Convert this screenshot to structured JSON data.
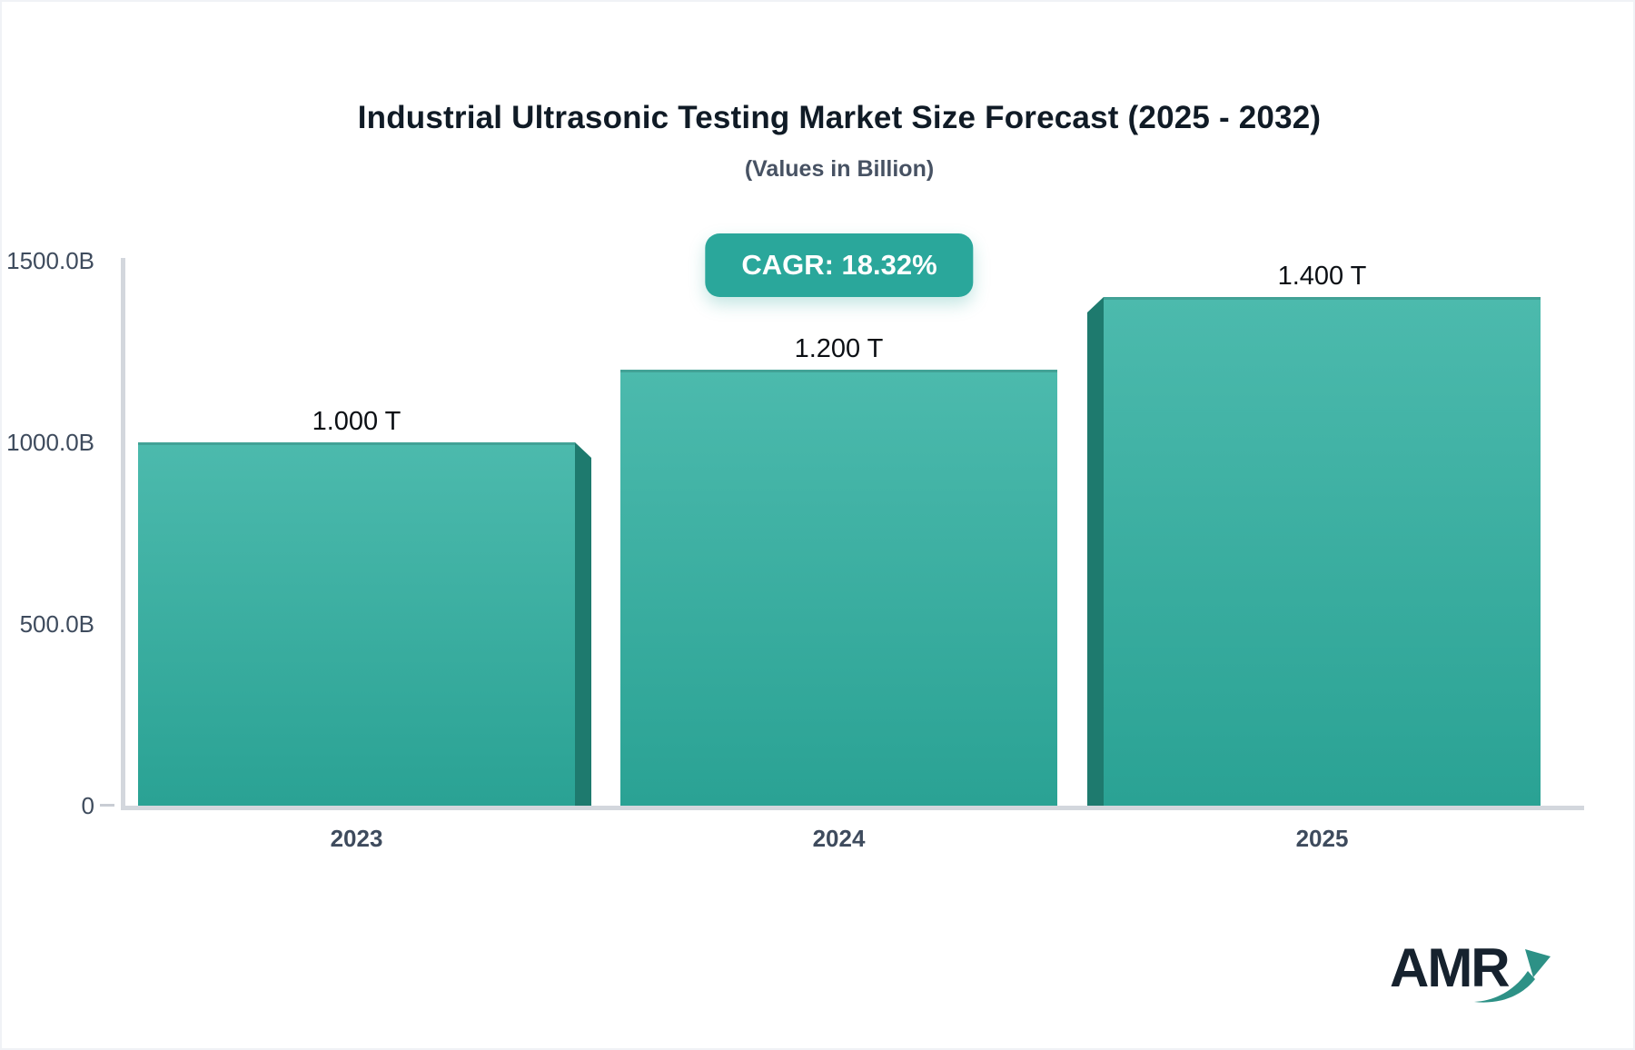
{
  "header": {
    "title": "Industrial Ultrasonic Testing Market Size Forecast (2025 - 2032)",
    "subtitle": "(Values in Billion)",
    "cagr_label": "CAGR: 18.32%"
  },
  "chart_data": {
    "type": "bar",
    "title": "Industrial Ultrasonic Testing Market Size Forecast (2025 - 2032)",
    "subtitle": "(Values in Billion)",
    "unit": "Billion",
    "cagr_percent": 18.32,
    "categories": [
      "2023",
      "2024",
      "2025"
    ],
    "values": [
      1000,
      1200,
      1400
    ],
    "value_labels": [
      "1.000 T",
      "1.200 T",
      "1.400 T"
    ],
    "ylim": [
      0,
      1500
    ],
    "y_ticks": [
      {
        "value": 1500,
        "label": "1500.0B"
      },
      {
        "value": 1000,
        "label": "1000.0B"
      },
      {
        "value": 500,
        "label": "500.0B"
      },
      {
        "value": 0,
        "label": "0"
      }
    ],
    "grid": false,
    "legend": false,
    "bar_depth_side": [
      "right",
      "none",
      "left"
    ]
  },
  "logo": {
    "text": "AMR"
  },
  "colors": {
    "bar_face_top": "#4cbaad",
    "bar_face_bottom": "#2aa294",
    "bar_side": "#1e7a6e",
    "bar_top_edge_alpha": "0.13",
    "badge_bg": "#2aa79b",
    "axis": "#d3d7dd",
    "tick_mark": "#c9cdd4",
    "tick_text": "#3e4b5d",
    "category_text": "#3e4b5d",
    "value_text": "#0b0f14",
    "title_text": "#101b26",
    "subtitle_text": "#475263",
    "logo_text": "#16222e",
    "logo_arrow": "#2d9186"
  }
}
